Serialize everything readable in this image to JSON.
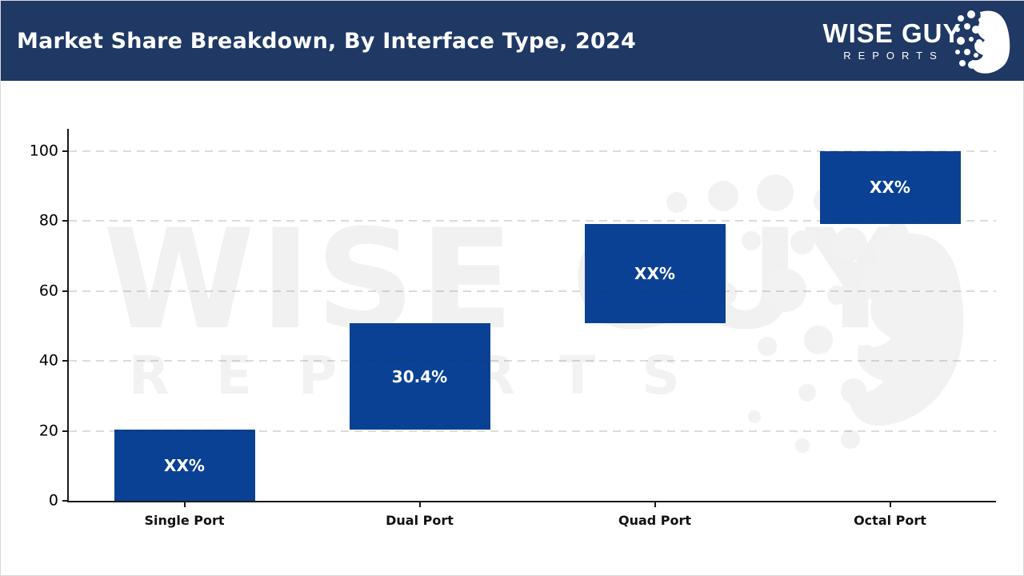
{
  "header": {
    "title": "Market Share Breakdown, By Interface Type, 2024",
    "logo": {
      "line1": "WISE GUY",
      "line2": "REPORTS"
    }
  },
  "watermark": {
    "line1": "WISE GUY",
    "line2": "REPORTS"
  },
  "chart_data": {
    "type": "bar",
    "subtype": "waterfall",
    "title": "Market Share Breakdown, By Interface Type, 2024",
    "categories": [
      "Single Port",
      "Dual Port",
      "Quad Port",
      "Octal Port"
    ],
    "bars": [
      {
        "category": "Single Port",
        "start": 0,
        "end": 20.3,
        "label": "XX%"
      },
      {
        "category": "Dual Port",
        "start": 20.3,
        "end": 50.7,
        "label": "30.4%"
      },
      {
        "category": "Quad Port",
        "start": 50.7,
        "end": 79.0,
        "label": "XX%"
      },
      {
        "category": "Octal Port",
        "start": 79.0,
        "end": 100,
        "label": "XX%"
      }
    ],
    "y_ticks": [
      0,
      20,
      40,
      60,
      80,
      100
    ],
    "ylim": [
      0,
      106
    ],
    "xlabel": "",
    "ylabel": "",
    "legend": "none",
    "grid": "horizontal-dashed",
    "colors": {
      "bar": "#0b4194",
      "header_bg": "#1f3864",
      "grid_line": "#dcdcdc",
      "axis": "#1a1a1a",
      "bar_label_text": "#ffffff",
      "watermark": "#f1f1f2"
    }
  }
}
